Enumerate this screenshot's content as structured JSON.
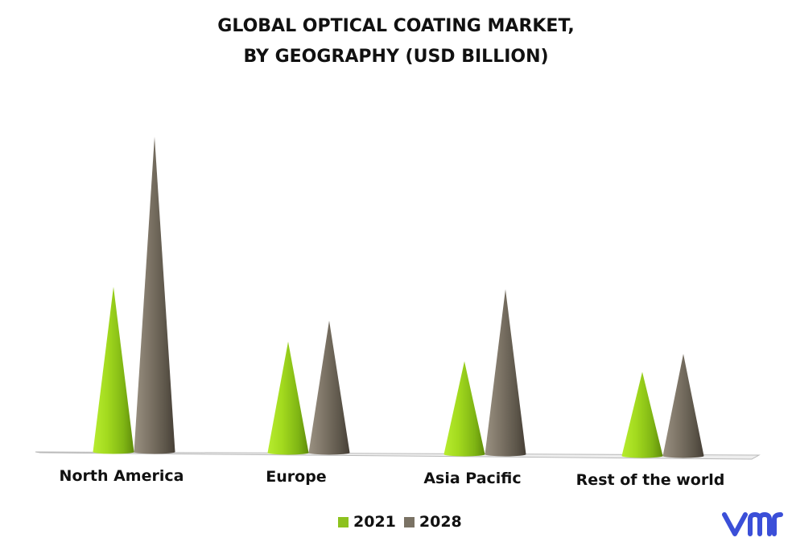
{
  "chart_data": {
    "type": "bar",
    "title": "GLOBAL OPTICAL COATING MARKET,",
    "subtitle": "BY GEOGRAPHY (USD BILLION)",
    "categories": [
      "North America",
      "Europe",
      "Asia Pacific",
      "Rest of the world"
    ],
    "series": [
      {
        "name": "2021",
        "values": [
          5.5,
          3.7,
          3.1,
          2.8
        ],
        "color": "#8dc21f"
      },
      {
        "name": "2028",
        "values": [
          10.5,
          4.4,
          5.5,
          3.4
        ],
        "color": "#7a7264"
      }
    ],
    "ylim": [
      0,
      12
    ],
    "grid": false,
    "legend_position": "bottom-center",
    "bar_shape": "cone"
  },
  "logo": {
    "text": "vmr",
    "color": "#3b4fd8"
  }
}
